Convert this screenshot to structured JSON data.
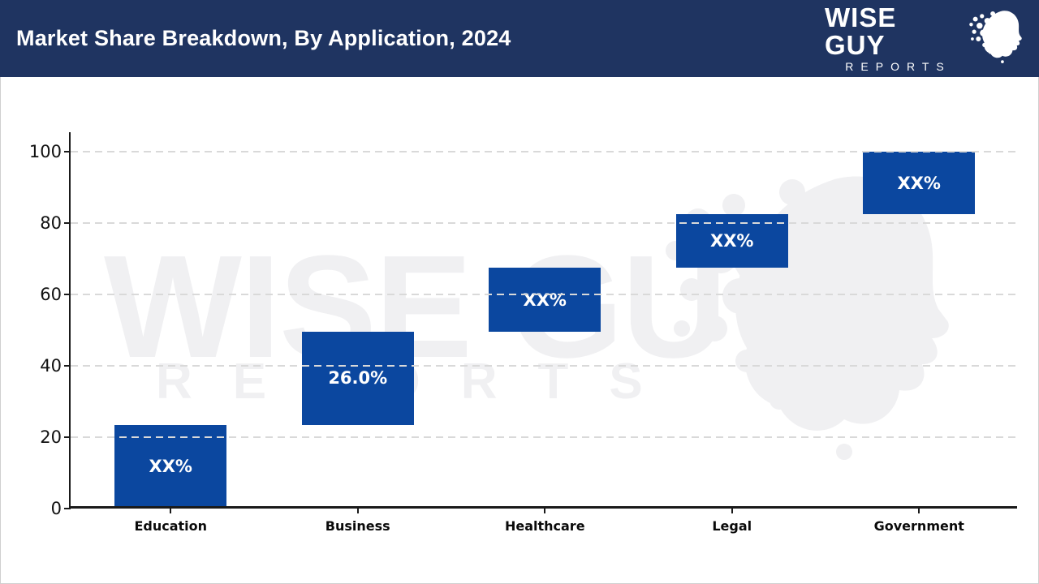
{
  "header": {
    "title": "Market Share Breakdown, By Application, 2024",
    "logo": {
      "name": "WISE GUY",
      "subtitle": "REPORTS"
    }
  },
  "watermark": {
    "name": "WISE GUY",
    "subtitle": "REPORTS"
  },
  "colors": {
    "header_bg": "#1F3461",
    "bar": "#0B479F",
    "gridline": "#D9D9D9",
    "axis": "#1A1A1A",
    "watermark": "#F0F0F2"
  },
  "chart_data": {
    "type": "bar",
    "subtype": "waterfall",
    "title": "Market Share Breakdown, By Application, 2024",
    "categories": [
      "Education",
      "Business",
      "Healthcare",
      "Legal",
      "Government"
    ],
    "segments": [
      {
        "category": "Education",
        "start": 0,
        "end": 23.5,
        "label": "XX%"
      },
      {
        "category": "Business",
        "start": 23.5,
        "end": 49.5,
        "label": "26.0%"
      },
      {
        "category": "Healthcare",
        "start": 49.5,
        "end": 67.5,
        "label": "XX%"
      },
      {
        "category": "Legal",
        "start": 67.5,
        "end": 82.5,
        "label": "XX%"
      },
      {
        "category": "Government",
        "start": 82.5,
        "end": 100,
        "label": "XX%"
      }
    ],
    "xlabel": "",
    "ylabel": "",
    "yticks": [
      0,
      20,
      40,
      60,
      80,
      100
    ],
    "ylim": [
      0,
      105
    ],
    "grid": "horizontal dashed, drawn over bars",
    "legend": "none",
    "bar_label_color": "#FFFFFF"
  }
}
